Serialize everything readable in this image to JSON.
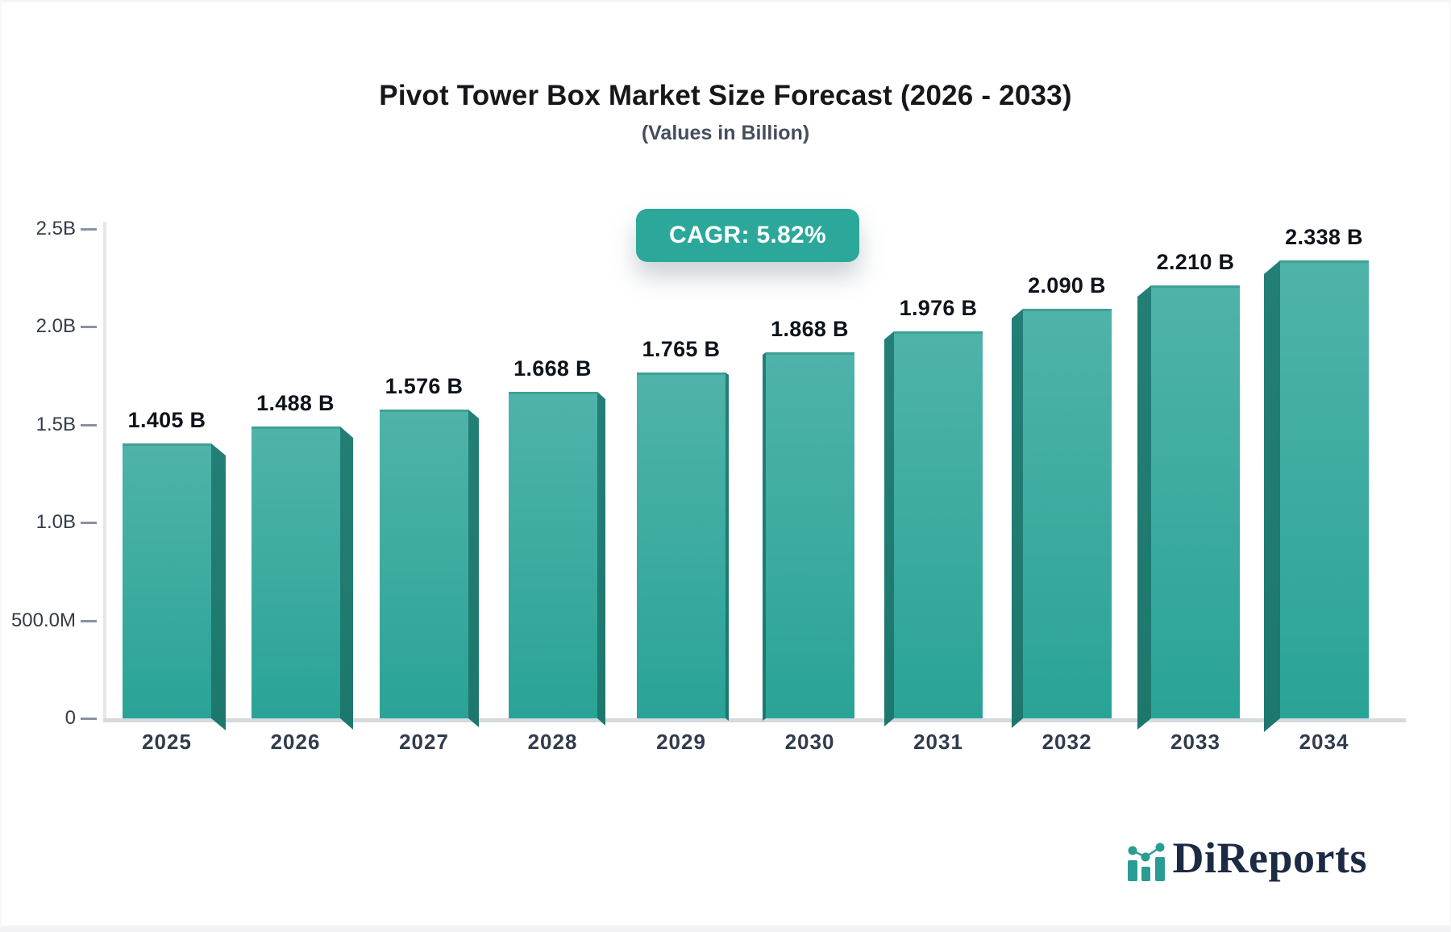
{
  "header": {
    "title": "Pivot Tower Box Market Size Forecast (2026 - 2033)",
    "subtitle": "(Values in Billion)",
    "cagr_label": "CAGR: 5.82%"
  },
  "logo": {
    "text": "DiReports",
    "icon": "bar-line-chart-icon"
  },
  "colors": {
    "bar_face_top": "#4fb3aa",
    "bar_face_bottom": "#2aa397",
    "bar_side": "#1f7e74",
    "badge_bg": "#2ba89a",
    "axis_line": "#d5d8dd",
    "logo_navy": "#1c2a44",
    "logo_teal": "#2b9c93"
  },
  "chart_data": {
    "type": "bar",
    "title": "Pivot Tower Box Market Size Forecast (2026 - 2033)",
    "subtitle": "(Values in Billion)",
    "cagr": "5.82%",
    "categories": [
      "2025",
      "2026",
      "2027",
      "2028",
      "2029",
      "2030",
      "2031",
      "2032",
      "2033",
      "2034"
    ],
    "values": [
      1.405,
      1.488,
      1.576,
      1.668,
      1.765,
      1.868,
      1.976,
      2.09,
      2.21,
      2.338
    ],
    "value_labels": [
      "1.405 B",
      "1.488 B",
      "1.576 B",
      "1.668 B",
      "1.765 B",
      "1.868 B",
      "1.976 B",
      "2.090 B",
      "2.210 B",
      "2.338 B"
    ],
    "value_unit": "B",
    "yticks": [
      {
        "label": "0",
        "value": 0
      },
      {
        "label": "500.0M",
        "value": 0.5
      },
      {
        "label": "1.0B",
        "value": 1.0
      },
      {
        "label": "1.5B",
        "value": 1.5
      },
      {
        "label": "2.0B",
        "value": 2.0
      },
      {
        "label": "2.5B",
        "value": 2.5
      }
    ],
    "ylim": [
      0,
      2.5
    ],
    "xlabel": "",
    "ylabel": "",
    "grid": false,
    "legend": null
  }
}
